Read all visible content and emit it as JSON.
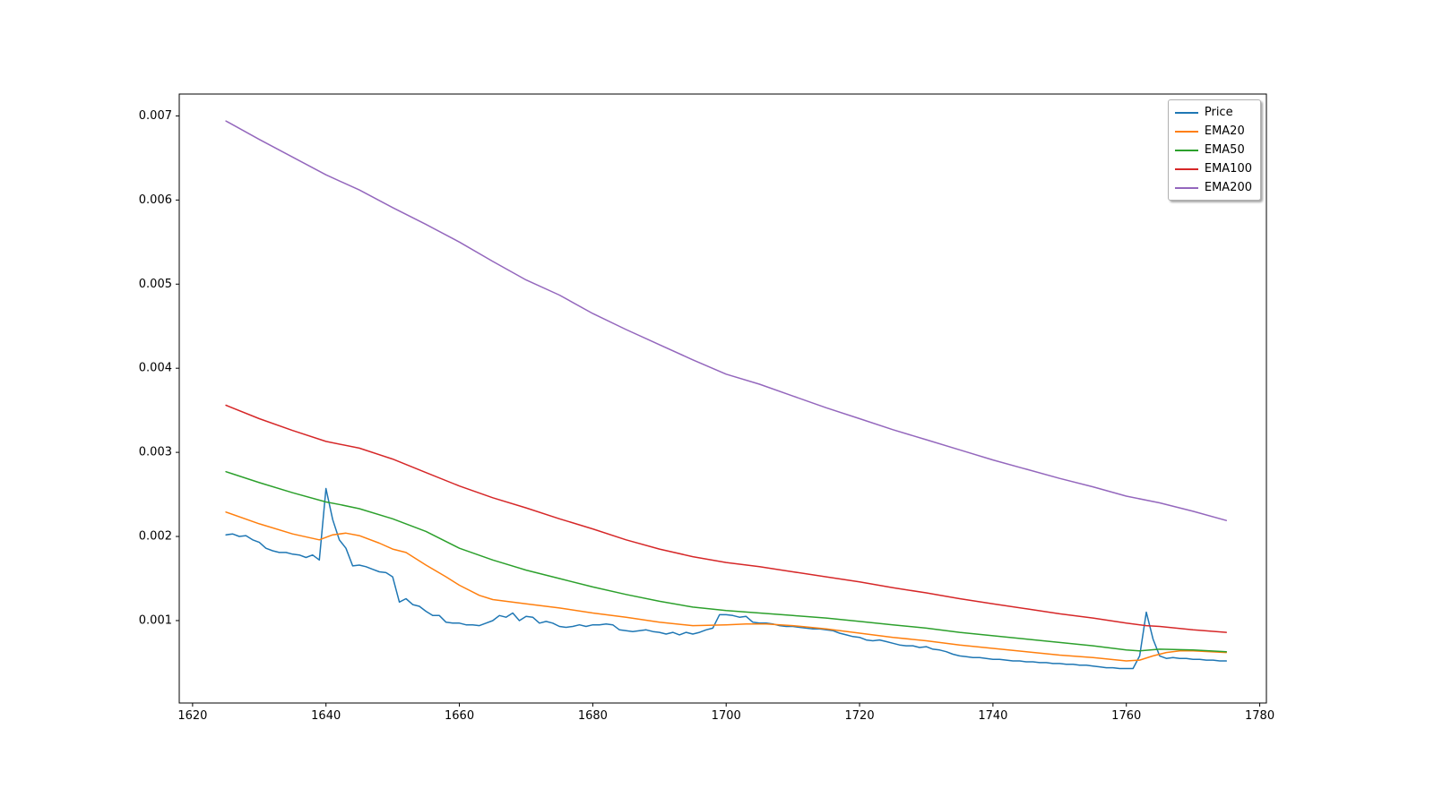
{
  "figure": {
    "background": "#ffffff"
  },
  "chart_data": {
    "type": "line",
    "title": "",
    "xlabel": "",
    "ylabel": "",
    "grid": false,
    "legend_position": "upper right",
    "xlim": [
      1618,
      1781
    ],
    "ylim": [
      2e-05,
      0.00726
    ],
    "x_ticks": [
      1620,
      1640,
      1660,
      1680,
      1700,
      1720,
      1740,
      1760,
      1780
    ],
    "x_tick_labels": [
      "1620",
      "1640",
      "1660",
      "1680",
      "1700",
      "1720",
      "1740",
      "1760",
      "1780"
    ],
    "y_ticks": [
      0.001,
      0.002,
      0.003,
      0.004,
      0.005,
      0.006,
      0.007
    ],
    "y_tick_labels": [
      "0.001",
      "0.002",
      "0.003",
      "0.004",
      "0.005",
      "0.006",
      "0.007"
    ],
    "series": [
      {
        "name": "Price",
        "color": "#1f77b4",
        "points": [
          [
            1625,
            0.00202
          ],
          [
            1626,
            0.00203
          ],
          [
            1627,
            0.002
          ],
          [
            1628,
            0.00201
          ],
          [
            1629,
            0.00196
          ],
          [
            1630,
            0.00193
          ],
          [
            1631,
            0.00186
          ],
          [
            1632,
            0.00183
          ],
          [
            1633,
            0.00181
          ],
          [
            1634,
            0.00181
          ],
          [
            1635,
            0.00179
          ],
          [
            1636,
            0.00178
          ],
          [
            1637,
            0.00175
          ],
          [
            1638,
            0.00178
          ],
          [
            1639,
            0.00172
          ],
          [
            1640,
            0.00257
          ],
          [
            1641,
            0.0022
          ],
          [
            1642,
            0.00196
          ],
          [
            1643,
            0.00186
          ],
          [
            1644,
            0.00165
          ],
          [
            1645,
            0.00166
          ],
          [
            1646,
            0.00164
          ],
          [
            1647,
            0.00161
          ],
          [
            1648,
            0.00158
          ],
          [
            1649,
            0.00157
          ],
          [
            1650,
            0.00152
          ],
          [
            1651,
            0.00122
          ],
          [
            1652,
            0.00126
          ],
          [
            1653,
            0.00119
          ],
          [
            1654,
            0.00117
          ],
          [
            1655,
            0.00111
          ],
          [
            1656,
            0.00106
          ],
          [
            1657,
            0.00106
          ],
          [
            1658,
            0.00098
          ],
          [
            1659,
            0.00097
          ],
          [
            1660,
            0.00097
          ],
          [
            1661,
            0.00095
          ],
          [
            1662,
            0.00095
          ],
          [
            1663,
            0.00094
          ],
          [
            1664,
            0.00097
          ],
          [
            1665,
            0.001
          ],
          [
            1666,
            0.00106
          ],
          [
            1667,
            0.00104
          ],
          [
            1668,
            0.00109
          ],
          [
            1669,
            0.001
          ],
          [
            1670,
            0.00105
          ],
          [
            1671,
            0.00104
          ],
          [
            1672,
            0.00097
          ],
          [
            1673,
            0.00099
          ],
          [
            1674,
            0.00097
          ],
          [
            1675,
            0.00093
          ],
          [
            1676,
            0.00092
          ],
          [
            1677,
            0.00093
          ],
          [
            1678,
            0.00095
          ],
          [
            1679,
            0.00093
          ],
          [
            1680,
            0.00095
          ],
          [
            1681,
            0.00095
          ],
          [
            1682,
            0.00096
          ],
          [
            1683,
            0.00095
          ],
          [
            1684,
            0.00089
          ],
          [
            1685,
            0.00088
          ],
          [
            1686,
            0.00087
          ],
          [
            1687,
            0.00088
          ],
          [
            1688,
            0.00089
          ],
          [
            1689,
            0.00087
          ],
          [
            1690,
            0.00086
          ],
          [
            1691,
            0.00084
          ],
          [
            1692,
            0.00086
          ],
          [
            1693,
            0.00083
          ],
          [
            1694,
            0.00086
          ],
          [
            1695,
            0.00084
          ],
          [
            1696,
            0.00086
          ],
          [
            1697,
            0.00089
          ],
          [
            1698,
            0.00091
          ],
          [
            1699,
            0.00107
          ],
          [
            1700,
            0.00107
          ],
          [
            1701,
            0.00106
          ],
          [
            1702,
            0.00104
          ],
          [
            1703,
            0.00105
          ],
          [
            1704,
            0.00098
          ],
          [
            1705,
            0.00097
          ],
          [
            1706,
            0.00097
          ],
          [
            1707,
            0.00096
          ],
          [
            1708,
            0.00094
          ],
          [
            1709,
            0.00093
          ],
          [
            1710,
            0.00093
          ],
          [
            1711,
            0.00092
          ],
          [
            1712,
            0.00091
          ],
          [
            1713,
            0.0009
          ],
          [
            1714,
            0.0009
          ],
          [
            1715,
            0.00089
          ],
          [
            1716,
            0.00088
          ],
          [
            1717,
            0.00085
          ],
          [
            1718,
            0.00083
          ],
          [
            1719,
            0.00081
          ],
          [
            1720,
            0.0008
          ],
          [
            1721,
            0.00077
          ],
          [
            1722,
            0.00076
          ],
          [
            1723,
            0.00077
          ],
          [
            1724,
            0.00075
          ],
          [
            1725,
            0.00073
          ],
          [
            1726,
            0.00071
          ],
          [
            1727,
            0.0007
          ],
          [
            1728,
            0.0007
          ],
          [
            1729,
            0.00068
          ],
          [
            1730,
            0.00069
          ],
          [
            1731,
            0.00066
          ],
          [
            1732,
            0.00065
          ],
          [
            1733,
            0.00063
          ],
          [
            1734,
            0.0006
          ],
          [
            1735,
            0.00058
          ],
          [
            1736,
            0.00057
          ],
          [
            1737,
            0.00056
          ],
          [
            1738,
            0.00056
          ],
          [
            1739,
            0.00055
          ],
          [
            1740,
            0.00054
          ],
          [
            1741,
            0.00054
          ],
          [
            1742,
            0.00053
          ],
          [
            1743,
            0.00052
          ],
          [
            1744,
            0.00052
          ],
          [
            1745,
            0.00051
          ],
          [
            1746,
            0.00051
          ],
          [
            1747,
            0.0005
          ],
          [
            1748,
            0.0005
          ],
          [
            1749,
            0.00049
          ],
          [
            1750,
            0.00049
          ],
          [
            1751,
            0.00048
          ],
          [
            1752,
            0.00048
          ],
          [
            1753,
            0.00047
          ],
          [
            1754,
            0.00047
          ],
          [
            1755,
            0.00046
          ],
          [
            1756,
            0.00045
          ],
          [
            1757,
            0.00044
          ],
          [
            1758,
            0.00044
          ],
          [
            1759,
            0.00043
          ],
          [
            1760,
            0.00043
          ],
          [
            1761,
            0.00043
          ],
          [
            1762,
            0.00058
          ],
          [
            1763,
            0.0011
          ],
          [
            1764,
            0.00078
          ],
          [
            1765,
            0.00058
          ],
          [
            1766,
            0.00055
          ],
          [
            1767,
            0.00056
          ],
          [
            1768,
            0.00055
          ],
          [
            1769,
            0.00055
          ],
          [
            1770,
            0.00054
          ],
          [
            1771,
            0.00054
          ],
          [
            1772,
            0.00053
          ],
          [
            1773,
            0.00053
          ],
          [
            1774,
            0.00052
          ],
          [
            1775,
            0.00052
          ]
        ]
      },
      {
        "name": "EMA20",
        "color": "#ff7f0e",
        "points": [
          [
            1625,
            0.00229
          ],
          [
            1630,
            0.00215
          ],
          [
            1635,
            0.00203
          ],
          [
            1639,
            0.00196
          ],
          [
            1641,
            0.00202
          ],
          [
            1643,
            0.00204
          ],
          [
            1645,
            0.00201
          ],
          [
            1648,
            0.00192
          ],
          [
            1650,
            0.00185
          ],
          [
            1652,
            0.00181
          ],
          [
            1655,
            0.00166
          ],
          [
            1658,
            0.00152
          ],
          [
            1660,
            0.00142
          ],
          [
            1663,
            0.0013
          ],
          [
            1665,
            0.00125
          ],
          [
            1670,
            0.0012
          ],
          [
            1675,
            0.00115
          ],
          [
            1680,
            0.00109
          ],
          [
            1685,
            0.00104
          ],
          [
            1690,
            0.00098
          ],
          [
            1695,
            0.00094
          ],
          [
            1700,
            0.00095
          ],
          [
            1703,
            0.00096
          ],
          [
            1706,
            0.00096
          ],
          [
            1710,
            0.00094
          ],
          [
            1715,
            0.0009
          ],
          [
            1720,
            0.00085
          ],
          [
            1725,
            0.0008
          ],
          [
            1730,
            0.00076
          ],
          [
            1735,
            0.00071
          ],
          [
            1740,
            0.00067
          ],
          [
            1745,
            0.00063
          ],
          [
            1750,
            0.00059
          ],
          [
            1755,
            0.00056
          ],
          [
            1760,
            0.00052
          ],
          [
            1762,
            0.00053
          ],
          [
            1764,
            0.00058
          ],
          [
            1766,
            0.00062
          ],
          [
            1768,
            0.00064
          ],
          [
            1770,
            0.00064
          ],
          [
            1775,
            0.00062
          ]
        ]
      },
      {
        "name": "EMA50",
        "color": "#2ca02c",
        "points": [
          [
            1625,
            0.00277
          ],
          [
            1630,
            0.00264
          ],
          [
            1635,
            0.00252
          ],
          [
            1640,
            0.00241
          ],
          [
            1642,
            0.00238
          ],
          [
            1645,
            0.00233
          ],
          [
            1650,
            0.00221
          ],
          [
            1655,
            0.00206
          ],
          [
            1660,
            0.00186
          ],
          [
            1665,
            0.00172
          ],
          [
            1670,
            0.0016
          ],
          [
            1675,
            0.0015
          ],
          [
            1680,
            0.0014
          ],
          [
            1685,
            0.00131
          ],
          [
            1690,
            0.00123
          ],
          [
            1695,
            0.00116
          ],
          [
            1700,
            0.00112
          ],
          [
            1705,
            0.00109
          ],
          [
            1710,
            0.00106
          ],
          [
            1715,
            0.00103
          ],
          [
            1720,
            0.00099
          ],
          [
            1725,
            0.00095
          ],
          [
            1730,
            0.00091
          ],
          [
            1735,
            0.00086
          ],
          [
            1740,
            0.00082
          ],
          [
            1745,
            0.00078
          ],
          [
            1750,
            0.00074
          ],
          [
            1755,
            0.0007
          ],
          [
            1760,
            0.00065
          ],
          [
            1762,
            0.00064
          ],
          [
            1765,
            0.00066
          ],
          [
            1770,
            0.00065
          ],
          [
            1775,
            0.00063
          ]
        ]
      },
      {
        "name": "EMA100",
        "color": "#d62728",
        "points": [
          [
            1625,
            0.00356
          ],
          [
            1630,
            0.0034
          ],
          [
            1635,
            0.00326
          ],
          [
            1640,
            0.00313
          ],
          [
            1645,
            0.00305
          ],
          [
            1650,
            0.00292
          ],
          [
            1655,
            0.00276
          ],
          [
            1660,
            0.0026
          ],
          [
            1665,
            0.00246
          ],
          [
            1670,
            0.00234
          ],
          [
            1675,
            0.00221
          ],
          [
            1680,
            0.00209
          ],
          [
            1685,
            0.00196
          ],
          [
            1690,
            0.00185
          ],
          [
            1695,
            0.00176
          ],
          [
            1700,
            0.00169
          ],
          [
            1705,
            0.00164
          ],
          [
            1710,
            0.00158
          ],
          [
            1715,
            0.00152
          ],
          [
            1720,
            0.00146
          ],
          [
            1725,
            0.00139
          ],
          [
            1730,
            0.00133
          ],
          [
            1735,
            0.00126
          ],
          [
            1740,
            0.0012
          ],
          [
            1745,
            0.00114
          ],
          [
            1750,
            0.00108
          ],
          [
            1755,
            0.00103
          ],
          [
            1760,
            0.00097
          ],
          [
            1763,
            0.00094
          ],
          [
            1765,
            0.00093
          ],
          [
            1770,
            0.00089
          ],
          [
            1775,
            0.00086
          ]
        ]
      },
      {
        "name": "EMA200",
        "color": "#9467bd",
        "points": [
          [
            1625,
            0.00694
          ],
          [
            1630,
            0.00672
          ],
          [
            1635,
            0.00651
          ],
          [
            1640,
            0.0063
          ],
          [
            1645,
            0.00612
          ],
          [
            1650,
            0.00591
          ],
          [
            1655,
            0.00571
          ],
          [
            1660,
            0.0055
          ],
          [
            1665,
            0.00527
          ],
          [
            1670,
            0.00505
          ],
          [
            1675,
            0.00487
          ],
          [
            1680,
            0.00465
          ],
          [
            1685,
            0.00446
          ],
          [
            1690,
            0.00428
          ],
          [
            1695,
            0.0041
          ],
          [
            1700,
            0.00393
          ],
          [
            1705,
            0.00381
          ],
          [
            1710,
            0.00367
          ],
          [
            1715,
            0.00353
          ],
          [
            1720,
            0.0034
          ],
          [
            1725,
            0.00327
          ],
          [
            1730,
            0.00315
          ],
          [
            1735,
            0.00303
          ],
          [
            1740,
            0.00291
          ],
          [
            1745,
            0.0028
          ],
          [
            1750,
            0.00269
          ],
          [
            1755,
            0.00259
          ],
          [
            1760,
            0.00248
          ],
          [
            1765,
            0.0024
          ],
          [
            1770,
            0.0023
          ],
          [
            1775,
            0.00219
          ]
        ]
      }
    ]
  }
}
